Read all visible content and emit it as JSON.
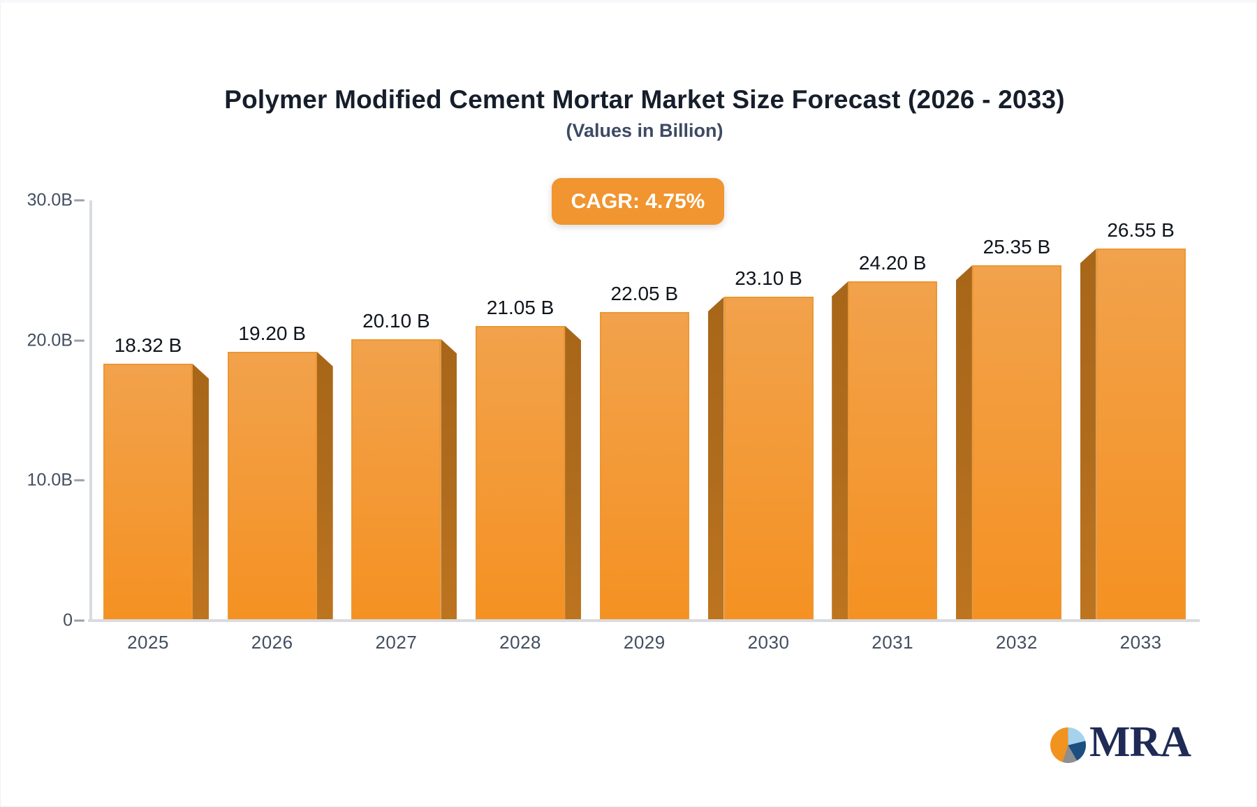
{
  "header": {
    "title": "Polymer Modified Cement Mortar Market Size Forecast (2026 - 2033)",
    "subtitle": "(Values in Billion)"
  },
  "badge": {
    "label": "CAGR: 4.75%"
  },
  "logo": {
    "text": "MRA"
  },
  "colors": {
    "title": "#161e2b",
    "subtitle": "#3d4a63",
    "badge_bg": "#f0952f",
    "badge_text": "#ffffff",
    "bar_face_top": "#f2a24c",
    "bar_face_bottom": "#f49122",
    "bar_side": "#b06c1d",
    "bar_border": "#ec9733",
    "axis_line": "#d9dbdf",
    "tick": "#9ba1aa",
    "axis_label": "#434e60",
    "value_label": "#10151c",
    "logo_text": "#1f2b56",
    "logo_pie_blue": "#a5d3ee",
    "logo_pie_navy": "#1c4e80",
    "logo_pie_gray": "#8e8d92",
    "logo_pie_orange": "#f0931f"
  },
  "chart_data": {
    "type": "bar",
    "title": "Polymer Modified Cement Mortar Market Size Forecast (2026 - 2033)",
    "subtitle": "(Values in Billion)",
    "unit": "Billion",
    "annotation": "CAGR: 4.75%",
    "categories": [
      "2025",
      "2026",
      "2027",
      "2028",
      "2029",
      "2030",
      "2031",
      "2032",
      "2033"
    ],
    "values": [
      18.32,
      19.2,
      20.1,
      21.05,
      22.05,
      23.1,
      24.2,
      25.35,
      26.55
    ],
    "value_labels": [
      "18.32 B",
      "19.20 B",
      "20.10 B",
      "21.05 B",
      "22.05 B",
      "23.10 B",
      "24.20 B",
      "25.35 B",
      "26.55 B"
    ],
    "ylim": [
      0,
      30
    ],
    "yticks": [
      {
        "value": 30,
        "label": "30.0B"
      },
      {
        "value": 20,
        "label": "20.0B"
      },
      {
        "value": 10,
        "label": "10.0B"
      },
      {
        "value": 0,
        "label": "0"
      }
    ],
    "grid": false,
    "legend": null,
    "style": "3d-perspective-bars"
  }
}
